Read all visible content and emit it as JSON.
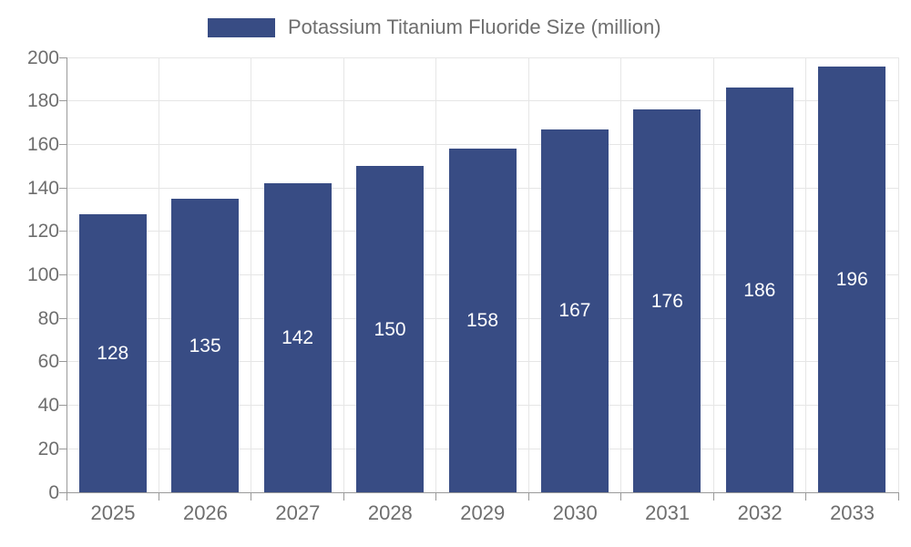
{
  "chart_data": {
    "type": "bar",
    "legend": "Potassium Titanium Fluoride Size (million)",
    "categories": [
      "2025",
      "2026",
      "2027",
      "2028",
      "2029",
      "2030",
      "2031",
      "2032",
      "2033"
    ],
    "values": [
      128,
      135,
      142,
      150,
      158,
      167,
      176,
      186,
      196
    ],
    "title": "",
    "xlabel": "",
    "ylabel": "",
    "ylim": [
      0,
      200
    ],
    "ytick_step": 20,
    "yticks": [
      0,
      20,
      40,
      60,
      80,
      100,
      120,
      140,
      160,
      180,
      200
    ],
    "grid": true,
    "legend_position": "top",
    "value_labels": "inside-center",
    "bar_color": "#384c84",
    "value_label_color": "#ffffff",
    "axis_text_color": "#6e6e6e",
    "axis_line_color": "#999999",
    "gridline_color": "#e6e6e6"
  }
}
